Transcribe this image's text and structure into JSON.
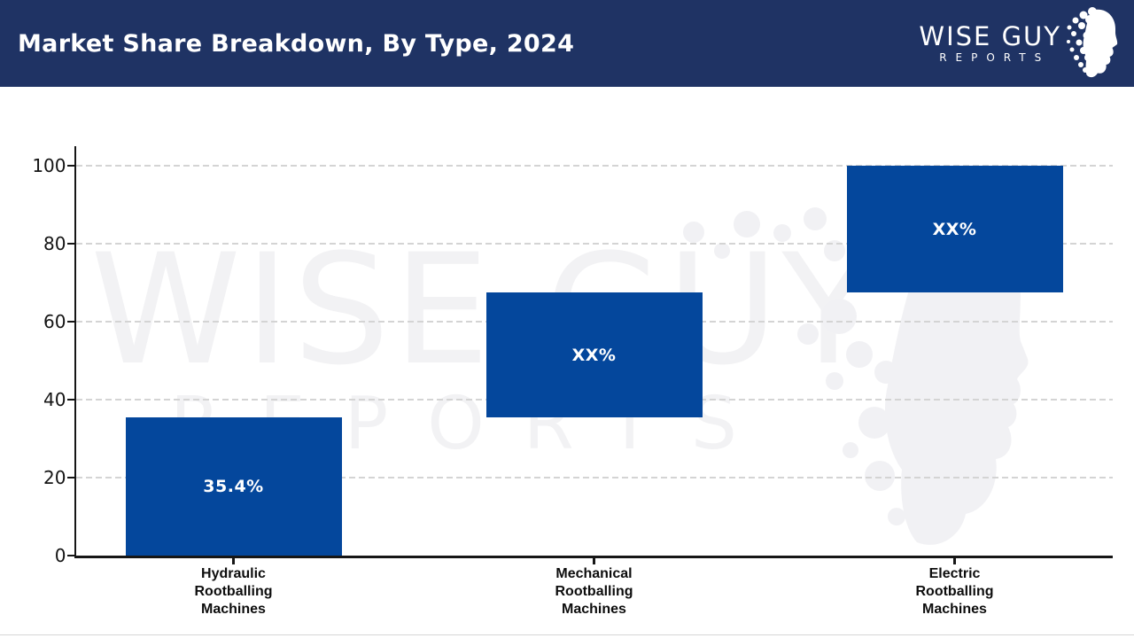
{
  "header": {
    "title": "Market Share Breakdown, By Type, 2024",
    "brand": {
      "name": "WISE GUY",
      "subtitle": "REPORTS"
    }
  },
  "watermark": {
    "line1": "WISE GUY",
    "line2": "REPORTS"
  },
  "colors": {
    "header_bg": "#1f3364",
    "bar": "#04479c",
    "bar_label": "#ffffff",
    "axis": "#161616",
    "gridline": "#d4d4d4",
    "watermark": "#f2f2f4"
  },
  "chart_data": {
    "type": "bar",
    "subtype": "waterfall",
    "title": "Market Share Breakdown, By Type, 2024",
    "xlabel": "",
    "ylabel": "",
    "ylim": [
      0,
      100
    ],
    "yticks": [
      0,
      20,
      40,
      60,
      80,
      100
    ],
    "grid": "horizontal dashed",
    "legend": "none",
    "bar_color": "#04479c",
    "categories": [
      "Hydraulic\nRootballing\nMachines",
      "Mechanical\nRootballing\nMachines",
      "Electric\nRootballing\nMachines"
    ],
    "bars": [
      {
        "category": "Hydraulic Rootballing Machines",
        "label": "35.4%",
        "start": 0,
        "end": 35.4
      },
      {
        "category": "Mechanical Rootballing Machines",
        "label": "XX%",
        "start": 35.4,
        "end": 67.5
      },
      {
        "category": "Electric Rootballing Machines",
        "label": "XX%",
        "start": 67.5,
        "end": 100
      }
    ]
  }
}
